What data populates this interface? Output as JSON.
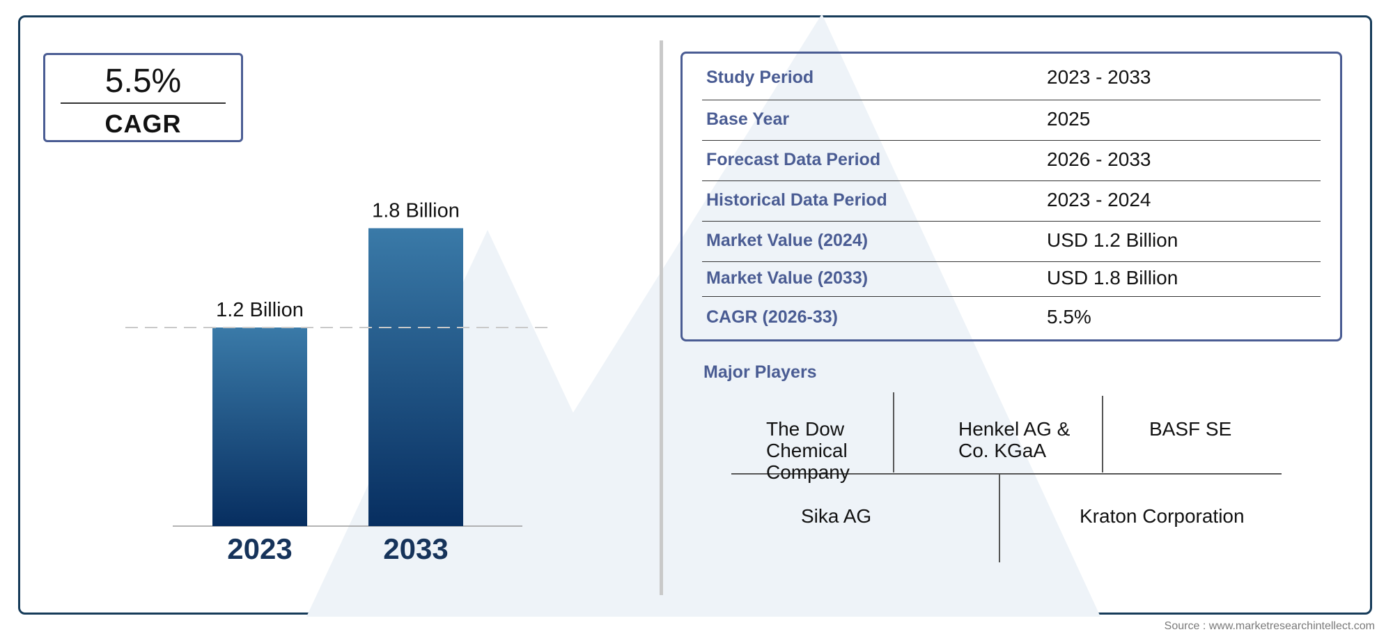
{
  "cagr_box": {
    "value": "5.5%",
    "label": "CAGR"
  },
  "chart_data": {
    "type": "bar",
    "categories": [
      "2023",
      "2033"
    ],
    "values": [
      1.2,
      1.8
    ],
    "data_labels": [
      "1.2 Billion",
      "1.8 Billion"
    ],
    "title": "",
    "xlabel": "",
    "ylabel": "",
    "unit": "Billion",
    "ylim": [
      0,
      2.0
    ],
    "grid": false,
    "reference_line": {
      "value": 1.2,
      "style": "dashed"
    },
    "colors": {
      "bar_top": "#3a7aa8",
      "bar_bottom": "#072e60",
      "category_label": "#16335a"
    }
  },
  "details": {
    "rows": [
      {
        "label": "Study Period",
        "value": "2023 - 2033"
      },
      {
        "label": "Base Year",
        "value": "2025"
      },
      {
        "label": "Forecast Data Period",
        "value": "2026 - 2033"
      },
      {
        "label": "Historical Data Period",
        "value": "2023 - 2024"
      },
      {
        "label": "Market Value (2024)",
        "value": "USD 1.2 Billion"
      },
      {
        "label": "Market Value (2033)",
        "value": "USD 1.8 Billion"
      },
      {
        "label": "CAGR (2026-33)",
        "value": "5.5%"
      }
    ]
  },
  "players": {
    "title": "Major Players",
    "items": [
      "The Dow Chemical Company",
      "Henkel AG & Co. KGaA",
      "BASF SE",
      "Sika AG",
      "Kraton Corporation"
    ]
  },
  "source": "Source : www.marketresearchintellect.com",
  "colors": {
    "frame": "#163b59",
    "accent": "#4a5c93",
    "watermark": "#eef3f8"
  }
}
